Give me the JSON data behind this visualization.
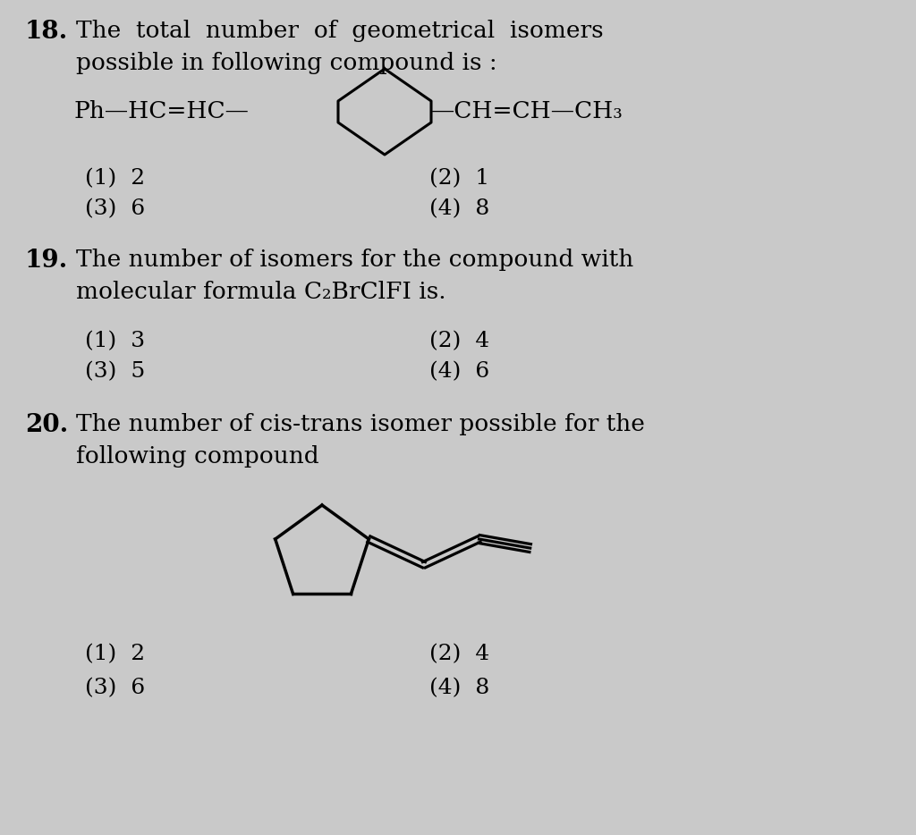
{
  "background_color": "#c9c9c9",
  "text_color": "#000000",
  "q18_number": "18.",
  "q18_text1": "The  total  number  of  geometrical  isomers",
  "q18_text2": "possible in following compound is :",
  "q18_options": [
    [
      "(1)  2",
      "(2)  1"
    ],
    [
      "(3)  6",
      "(4)  8"
    ]
  ],
  "q19_number": "19.",
  "q19_text1": "The number of isomers for the compound with",
  "q19_text2": "molecular formula C₂BrClFI is.",
  "q19_options": [
    [
      "(1)  3",
      "(2)  4"
    ],
    [
      "(3)  5",
      "(4)  6"
    ]
  ],
  "q20_number": "20.",
  "q20_text1": "The number of cis-trans isomer possible for the",
  "q20_text2": "following compound",
  "q20_options": [
    [
      "(1)  2",
      "(2)  4"
    ],
    [
      "(3)  6",
      "(4)  8"
    ]
  ],
  "fontsize_main": 19,
  "fontsize_options": 18,
  "fontsize_number": 20
}
